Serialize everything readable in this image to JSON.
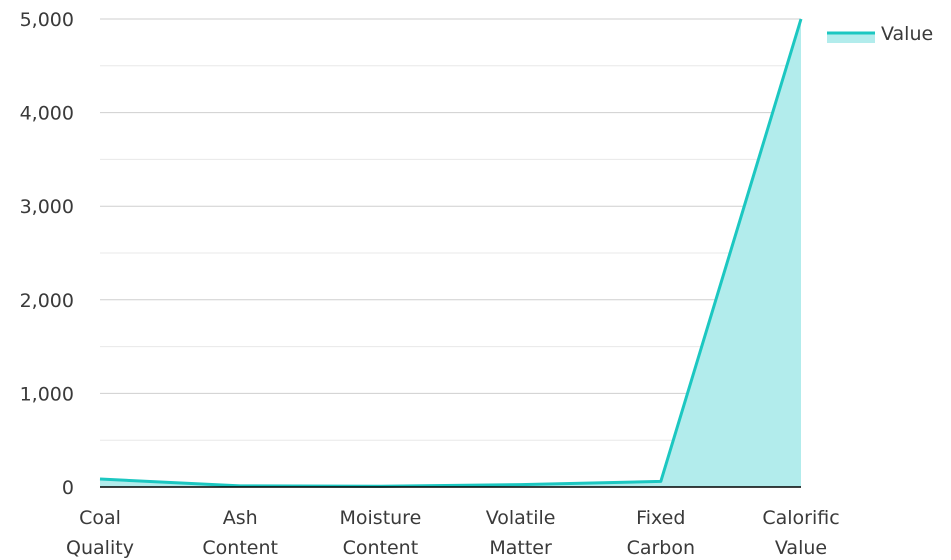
{
  "chart_data": {
    "type": "area",
    "categories": [
      [
        "Coal",
        "Quality"
      ],
      [
        "Ash",
        "Content"
      ],
      [
        "Moisture",
        "Content"
      ],
      [
        "Volatile",
        "Matter"
      ],
      [
        "Fixed",
        "Carbon"
      ],
      [
        "Calorific",
        "Value"
      ]
    ],
    "series": [
      {
        "name": "Value",
        "values": [
          85,
          12,
          8,
          25,
          60,
          5000
        ]
      }
    ],
    "ylim": [
      0,
      5000
    ],
    "yticks": [
      "0",
      "1,000",
      "2,000",
      "3,000",
      "4,000",
      "5,000"
    ],
    "ytick_values": [
      0,
      1000,
      2000,
      3000,
      4000,
      5000
    ],
    "grid": true,
    "legend_position": "top-right",
    "colors": {
      "line": "#1cc7c1",
      "fill": "#b2ecec",
      "grid": "#d9d9d9",
      "axis": "#000000"
    }
  }
}
